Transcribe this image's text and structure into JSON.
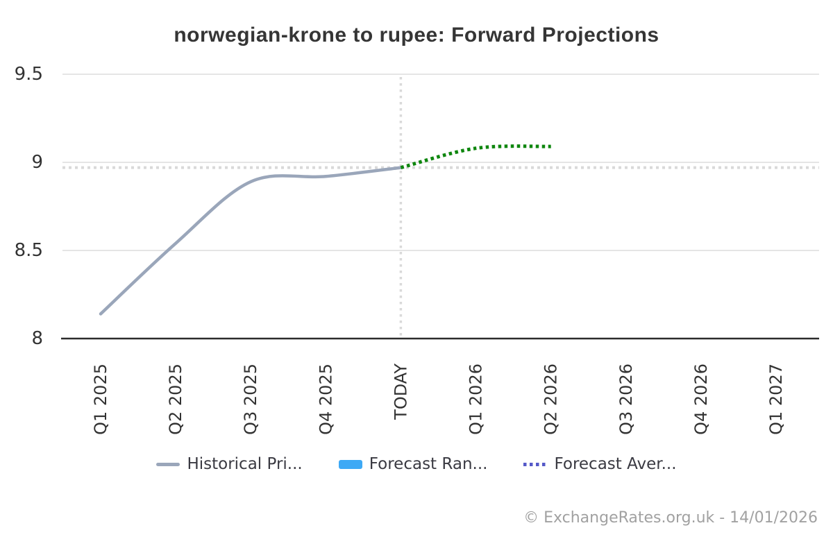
{
  "page": {
    "title": "norwegian-krone to rupee: Forward Projections"
  },
  "footer": {
    "copyright": "© ExchangeRates.org.uk - 14/01/2026"
  },
  "legend": {
    "items": [
      {
        "id": "historical-price",
        "label": "Historical Pri...",
        "swatch": "line",
        "color": "#9aa6ba"
      },
      {
        "id": "forecast-range",
        "label": "Forecast Ran...",
        "swatch": "rect",
        "color": "#3ea9f5"
      },
      {
        "id": "forecast-average",
        "label": "Forecast Aver...",
        "swatch": "dotted",
        "color": "#5559c8"
      }
    ]
  },
  "chart_data": {
    "type": "line",
    "title": "norwegian-krone to rupee: Forward Projections",
    "categories": [
      "Q1 2025",
      "Q2 2025",
      "Q3 2025",
      "Q4 2025",
      "TODAY",
      "Q1 2026",
      "Q2 2026",
      "Q3 2026",
      "Q4 2026",
      "Q1 2027"
    ],
    "ylim": [
      8,
      9.5
    ],
    "yticks": [
      9.5,
      9,
      8.5,
      8
    ],
    "grid": true,
    "legend_position": "bottom",
    "series": [
      {
        "name": "Historical Price",
        "style": "solid",
        "color": "#9aa6ba",
        "points": [
          {
            "x": "Q1 2025",
            "y": 8.14
          },
          {
            "x": "Q2 2025",
            "y": 8.54
          },
          {
            "x": "Q3 2025",
            "y": 8.89
          },
          {
            "x": "Q4 2025",
            "y": 8.92
          },
          {
            "x": "TODAY",
            "y": 8.97
          }
        ]
      },
      {
        "name": "Forecast Range",
        "style": "area",
        "color": "#3ea9f5",
        "points": []
      },
      {
        "name": "Forecast Average",
        "style": "dotted",
        "color": "#0e860e",
        "points": [
          {
            "x": "TODAY",
            "y": 8.97
          },
          {
            "x": "Q1 2026",
            "y": 9.08
          },
          {
            "x": "Q2 2026",
            "y": 9.09
          }
        ]
      }
    ],
    "reference_lines": {
      "vertical_at": "TODAY",
      "horizontal_at": 8.97
    }
  },
  "colors": {
    "grid": "#e5e5e5",
    "axis": "#2b2b2b",
    "reference_dotted": "#d9d9d9",
    "tick_text": "#333333"
  }
}
